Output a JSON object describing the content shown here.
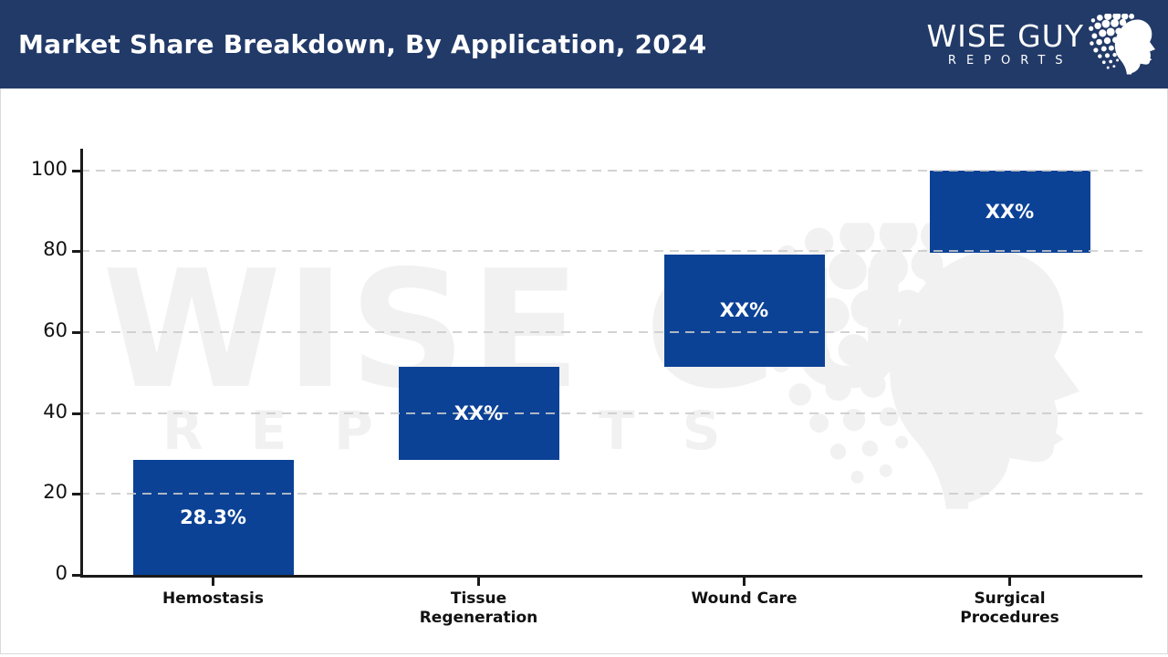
{
  "header": {
    "title": "Market Share Breakdown, By Application, 2024",
    "logo": {
      "wordmark": "WISE GUY",
      "subtext": "REPORTS"
    }
  },
  "watermark": {
    "wordmark": "WISE GUY",
    "subtext": "REPORTS"
  },
  "chart_data": {
    "type": "bar",
    "subtype": "waterfall",
    "title": "Market Share Breakdown, By Application, 2024",
    "categories": [
      "Hemostasis",
      "Tissue Regeneration",
      "Wound Care",
      "Surgical Procedures"
    ],
    "bars": [
      {
        "category": "Hemostasis",
        "category_lines": [
          "Hemostasis"
        ],
        "start": 0,
        "end": 28.3,
        "label": "28.3%"
      },
      {
        "category": "Tissue Regeneration",
        "category_lines": [
          "Tissue",
          "Regeneration"
        ],
        "start": 28.3,
        "end": 51.5,
        "label": "XX%"
      },
      {
        "category": "Wound Care",
        "category_lines": [
          "Wound Care"
        ],
        "start": 51.5,
        "end": 79.2,
        "label": "XX%"
      },
      {
        "category": "Surgical Procedures",
        "category_lines": [
          "Surgical",
          "Procedures"
        ],
        "start": 79.5,
        "end": 100,
        "label": "XX%"
      }
    ],
    "ylim": [
      0,
      100
    ],
    "yticks": [
      0,
      20,
      40,
      60,
      80,
      100
    ],
    "grid": {
      "horizontal": true,
      "style": "dashed"
    },
    "legend": "none",
    "colors": {
      "bar": "#0b4296",
      "bar_label": "#ffffff",
      "axis": "#1a1a1a",
      "tick_label": "#111111",
      "gridline": "#cbcbcb",
      "header_bg": "#223a68",
      "header_text": "#ffffff",
      "watermark": "#f1f1f1"
    }
  }
}
